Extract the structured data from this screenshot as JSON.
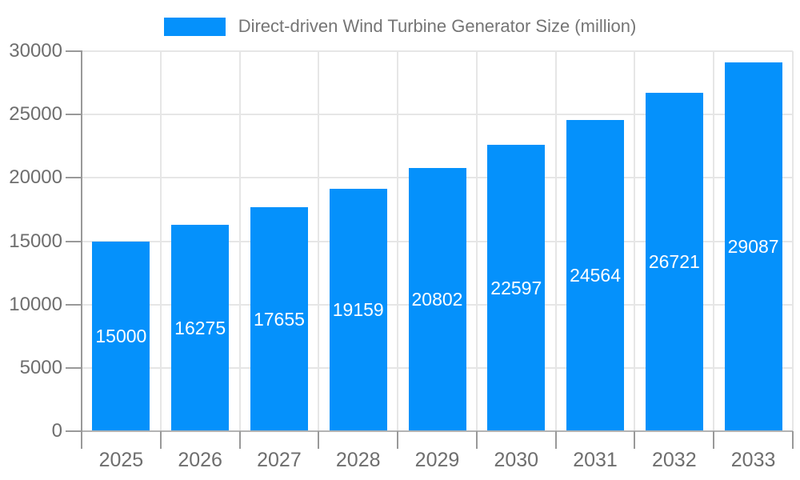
{
  "chart_data": {
    "type": "bar",
    "title": "Direct-driven Wind Turbine Generator Size (million)",
    "categories": [
      "2025",
      "2026",
      "2027",
      "2028",
      "2029",
      "2030",
      "2031",
      "2032",
      "2033"
    ],
    "values": [
      15000,
      16275,
      17655,
      19159,
      20802,
      22597,
      24564,
      26721,
      29087
    ],
    "bar_labels": [
      "15000",
      "16275",
      "17655",
      "19159",
      "20802",
      "22597",
      "24564",
      "26721",
      "29087"
    ],
    "xlabel": "",
    "ylabel": "",
    "ylim": [
      0,
      30000
    ],
    "yticks": [
      0,
      5000,
      10000,
      15000,
      20000,
      25000,
      30000
    ],
    "ytick_labels": [
      "0",
      "5000",
      "10000",
      "15000",
      "20000",
      "25000",
      "30000"
    ],
    "grid": true,
    "legend_position": "top-center",
    "colors": {
      "bar": "#0591fb",
      "bar_label": "#ffffff",
      "grid_line": "#e6e6e6",
      "axis_line": "#999999",
      "baseline": "#b3b3b3",
      "axis_text": "#6e6e6e",
      "title_text": "#757575",
      "background": "#ffffff"
    }
  }
}
